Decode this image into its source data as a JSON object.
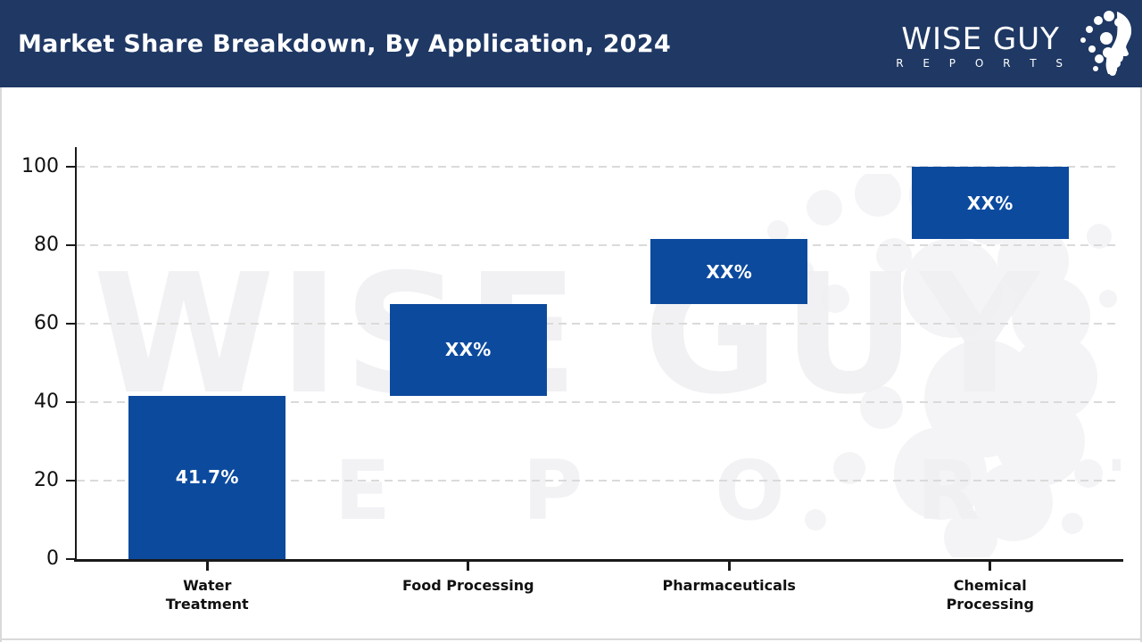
{
  "header": {
    "title": "Market Share Breakdown, By Application, 2024",
    "bg_color": "#1F3864",
    "brand": {
      "line1": "WISE GUY",
      "line2": "R E P O R T S"
    }
  },
  "watermark": {
    "line1": "WISE GUY",
    "line2": "R E P O R T S"
  },
  "chart_data": {
    "type": "bar",
    "subtype": "waterfall-floating-bars",
    "title": "Market Share Breakdown, By Application, 2024",
    "categories": [
      "Water Treatment",
      "Food Processing",
      "Pharmaceuticals",
      "Chemical Processing"
    ],
    "series": [
      {
        "name": "Market Share (%)",
        "segments": [
          {
            "category": "Water Treatment",
            "start": 0,
            "end": 41.7,
            "label": "41.7%"
          },
          {
            "category": "Food Processing",
            "start": 41.7,
            "end": 65,
            "label": "XX%"
          },
          {
            "category": "Pharmaceuticals",
            "start": 65,
            "end": 81.5,
            "label": "XX%"
          },
          {
            "category": "Chemical Processing",
            "start": 81.5,
            "end": 100,
            "label": "XX%"
          }
        ]
      }
    ],
    "xlabel": "",
    "ylabel": "",
    "ylim": [
      0,
      105
    ],
    "yticks": [
      0,
      20,
      40,
      60,
      80,
      100
    ],
    "grid": "horizontal dashed",
    "legend": "none",
    "bar_color": "#0C4A9E",
    "bar_label_color": "#ffffff",
    "axis_color": "#1a1a1a",
    "grid_color": "#dadada"
  }
}
